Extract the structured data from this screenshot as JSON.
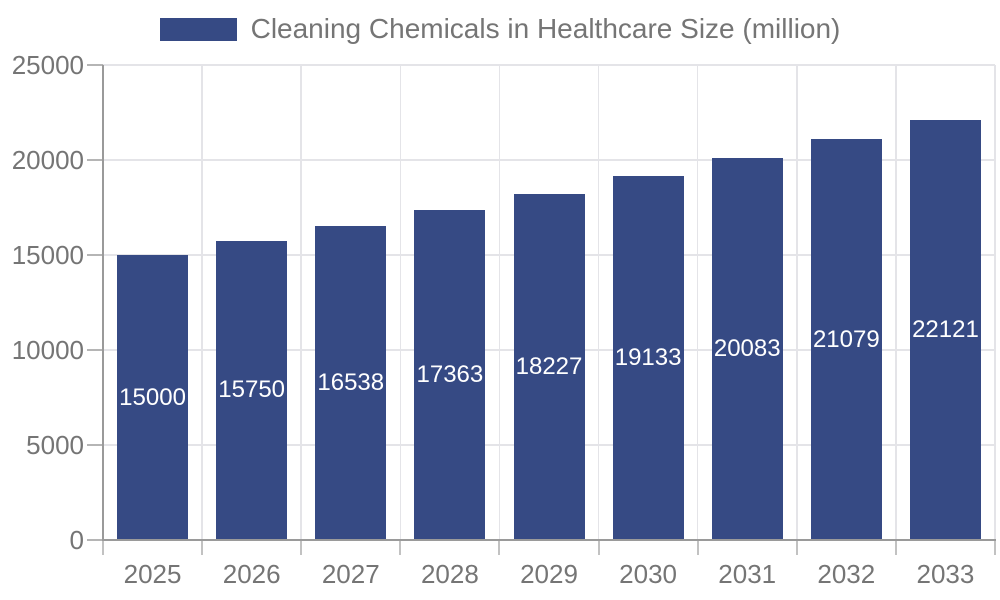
{
  "chart_data": {
    "type": "bar",
    "title": "Cleaning Chemicals in Healthcare Size (million)",
    "legend": {
      "label": "Cleaning Chemicals in Healthcare Size (million)",
      "position": "top"
    },
    "categories": [
      "2025",
      "2026",
      "2027",
      "2028",
      "2029",
      "2030",
      "2031",
      "2032",
      "2033"
    ],
    "values": [
      15000,
      15750,
      16538,
      17363,
      18227,
      19133,
      20083,
      21079,
      22121
    ],
    "xlabel": "",
    "ylabel": "",
    "ylim": [
      0,
      25000
    ],
    "yticks": [
      0,
      5000,
      10000,
      15000,
      20000,
      25000
    ],
    "ytick_labels": [
      "0",
      "5000",
      "10000",
      "15000",
      "20000",
      "25000"
    ],
    "grid": true,
    "colors": {
      "bar": "#364A84",
      "bar_label": "#ffffff",
      "grid": "#e4e4e8",
      "axis": "#9a9a9a",
      "tick": "#b5b5b5",
      "text": "#757575",
      "background": "#ffffff"
    }
  }
}
